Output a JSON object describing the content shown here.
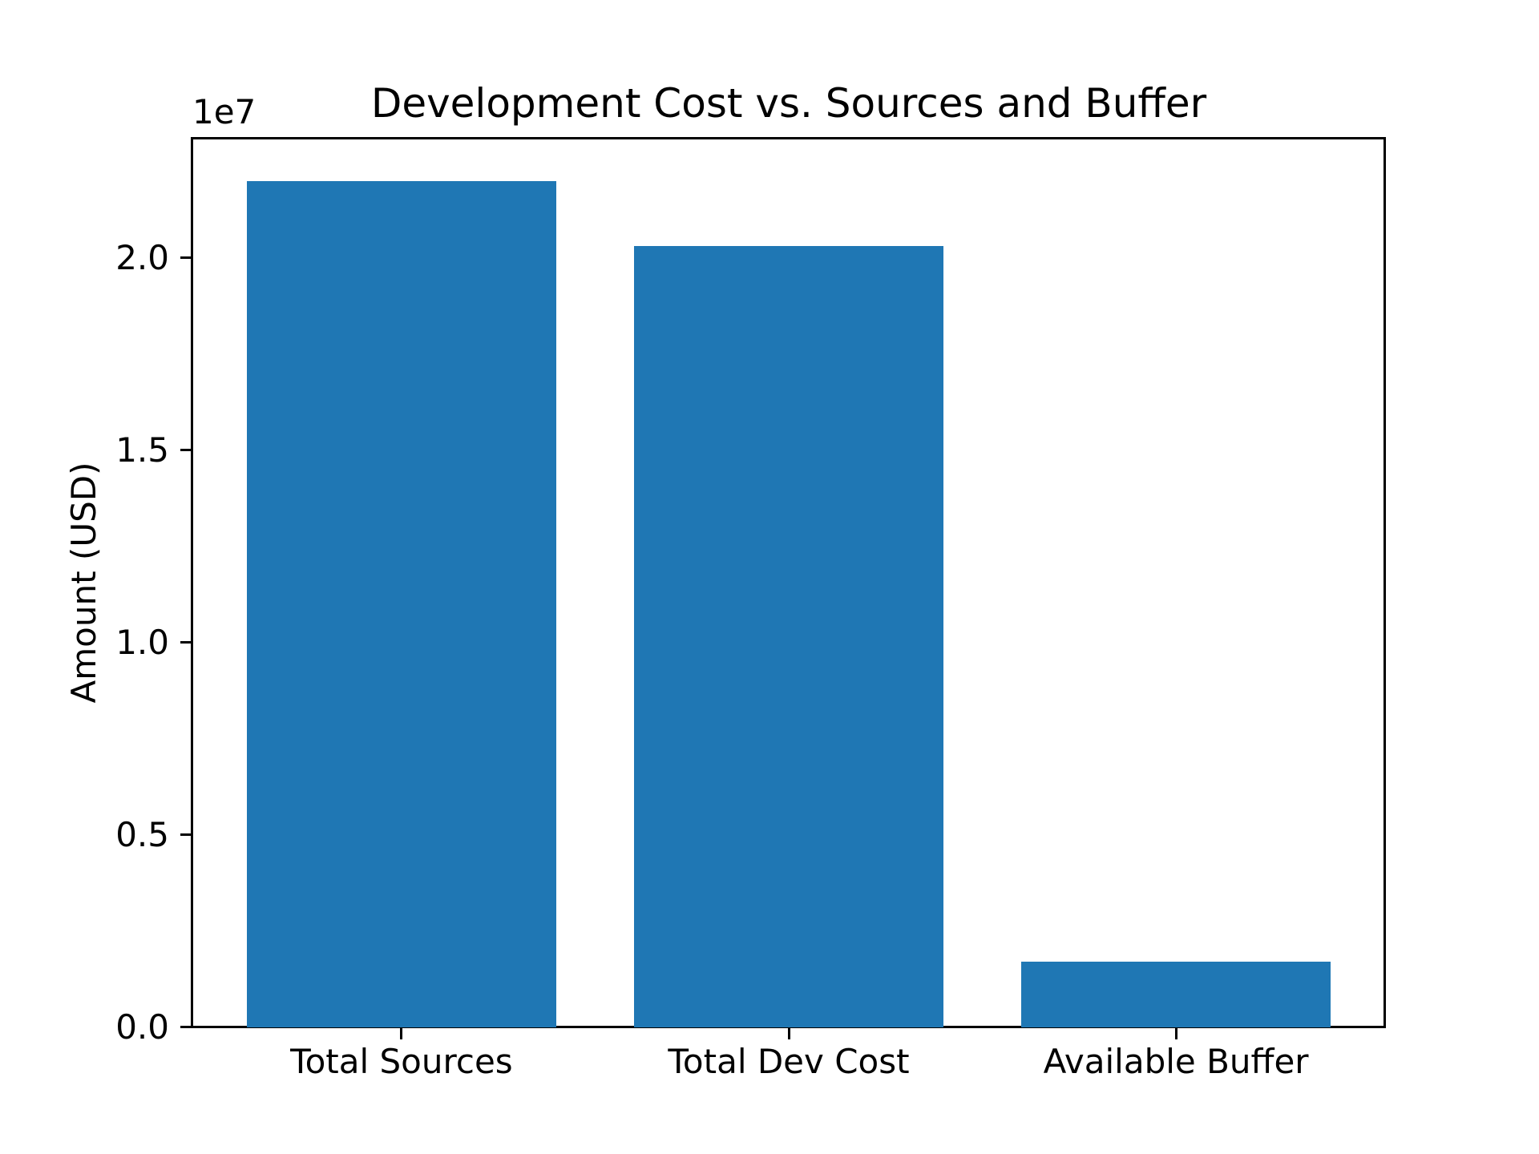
{
  "figure": {
    "background": "#ffffff",
    "text_color": "#000000"
  },
  "chart_data": {
    "type": "bar",
    "title": "Development Cost vs. Sources and Buffer",
    "xlabel": "",
    "ylabel": "Amount (USD)",
    "categories": [
      "Total Sources",
      "Total Dev Cost",
      "Available Buffer"
    ],
    "values": [
      22000000,
      20300000,
      1700000
    ],
    "bar_color": "#1f77b4",
    "bar_width": 0.8,
    "ylim": [
      0,
      23100000
    ],
    "yticks": {
      "values": [
        0,
        5000000,
        10000000,
        15000000,
        20000000
      ],
      "labels": [
        "0.0",
        "0.5",
        "1.0",
        "1.5",
        "2.0"
      ]
    },
    "offset_text": "1e7",
    "grid": false,
    "legend": false
  }
}
